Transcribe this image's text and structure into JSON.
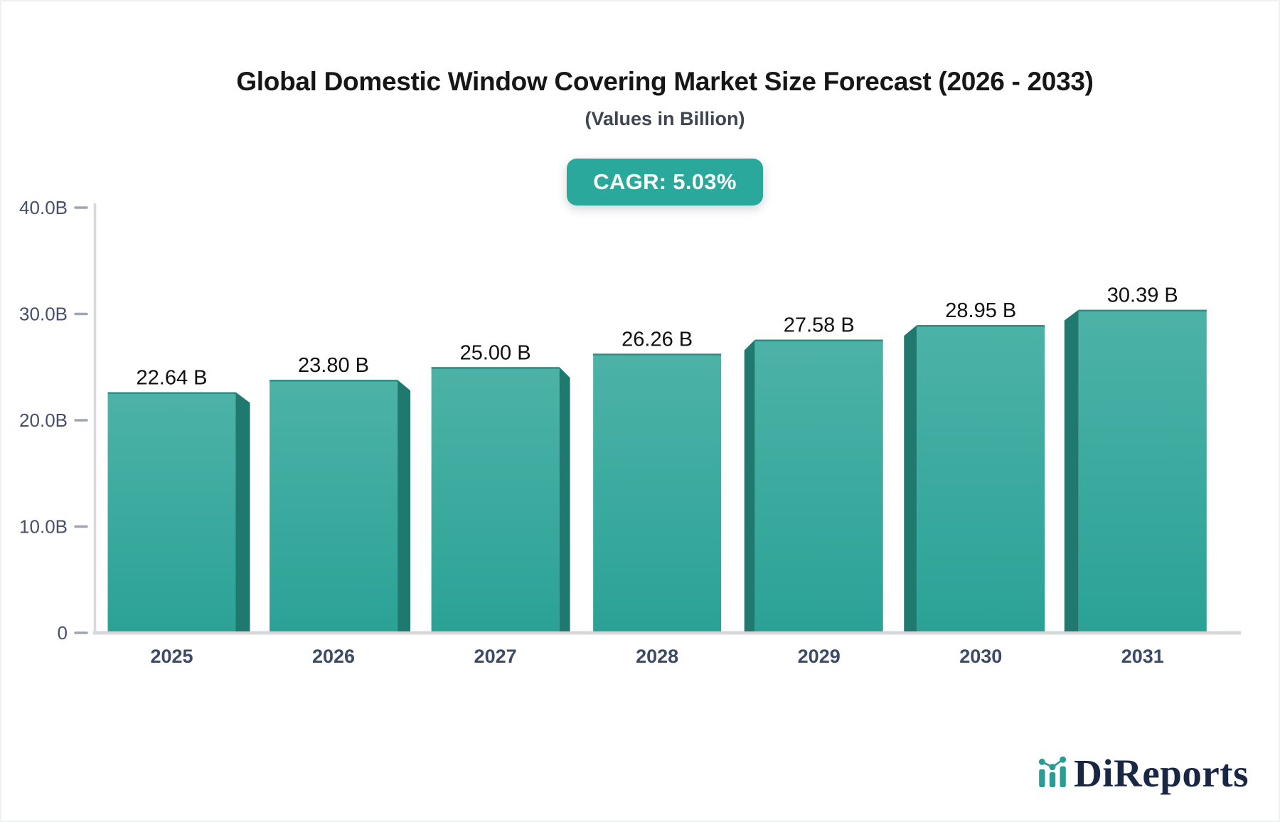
{
  "title": "Global Domestic Window Covering Market Size Forecast (2026 - 2033)",
  "subtitle": "(Values in Billion)",
  "cagr": {
    "label": "CAGR: 5.03%"
  },
  "brand": {
    "name": "DiReports"
  },
  "colors": {
    "accent": "#2AA89B",
    "bar_top": "#4DB2A7",
    "bar_bottom": "#2BA296",
    "bar_side": "#20796F",
    "bar_top_edge": "#2E8D85",
    "axis_line": "#D6D8DC",
    "tick_dash": "#9FA6B2",
    "y_label": "#46506B",
    "x_label": "#3B4A66",
    "value_label": "#101010",
    "logo_teal": "#2B9C94",
    "logo_navy": "#1A2744"
  },
  "chart_data": {
    "type": "bar",
    "title": "Global Domestic Window Covering Market Size Forecast (2026 - 2033)",
    "subtitle": "(Values in Billion)",
    "categories": [
      "2025",
      "2026",
      "2027",
      "2028",
      "2029",
      "2030",
      "2031"
    ],
    "values": [
      22.64,
      23.8,
      25.0,
      26.26,
      27.58,
      28.95,
      30.39
    ],
    "bar_labels": [
      "22.64 B",
      "23.80 B",
      "25.00 B",
      "26.26 B",
      "27.58 B",
      "28.95 B",
      "30.39 B"
    ],
    "y_ticks": [
      {
        "value": 40,
        "label": "40.0B"
      },
      {
        "value": 30,
        "label": "30.0B"
      },
      {
        "value": 20,
        "label": "20.0B"
      },
      {
        "value": 10,
        "label": "10.0B"
      },
      {
        "value": 0,
        "label": "0"
      }
    ],
    "ylim": [
      0,
      40
    ],
    "xlabel": "",
    "ylabel": "",
    "grid": false,
    "legend": null,
    "annotation": "CAGR: 5.03%",
    "style": "3d-perspective-bars"
  }
}
